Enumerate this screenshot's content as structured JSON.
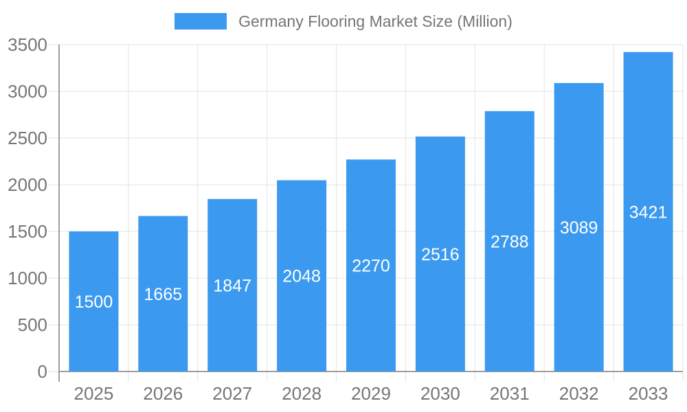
{
  "chart_data": {
    "type": "bar",
    "series_name": "Germany Flooring Market Size (Million)",
    "categories": [
      "2025",
      "2026",
      "2027",
      "2028",
      "2029",
      "2030",
      "2031",
      "2032",
      "2033"
    ],
    "values": [
      1500,
      1665,
      1847,
      2048,
      2270,
      2516,
      2788,
      3089,
      3421
    ],
    "xlabel": "",
    "ylabel": "",
    "ylim": [
      0,
      3500
    ],
    "yticks": [
      0,
      500,
      1000,
      1500,
      2000,
      2500,
      3000,
      3500
    ],
    "grid": true,
    "legend_position": "top",
    "value_labels": "inside-center",
    "colors": {
      "bar": "#3B9AEF",
      "grid": "#e3e3e3",
      "axis_line": "#9e9e9e",
      "axis_text": "#757575",
      "value_text": "#ffffff"
    }
  }
}
